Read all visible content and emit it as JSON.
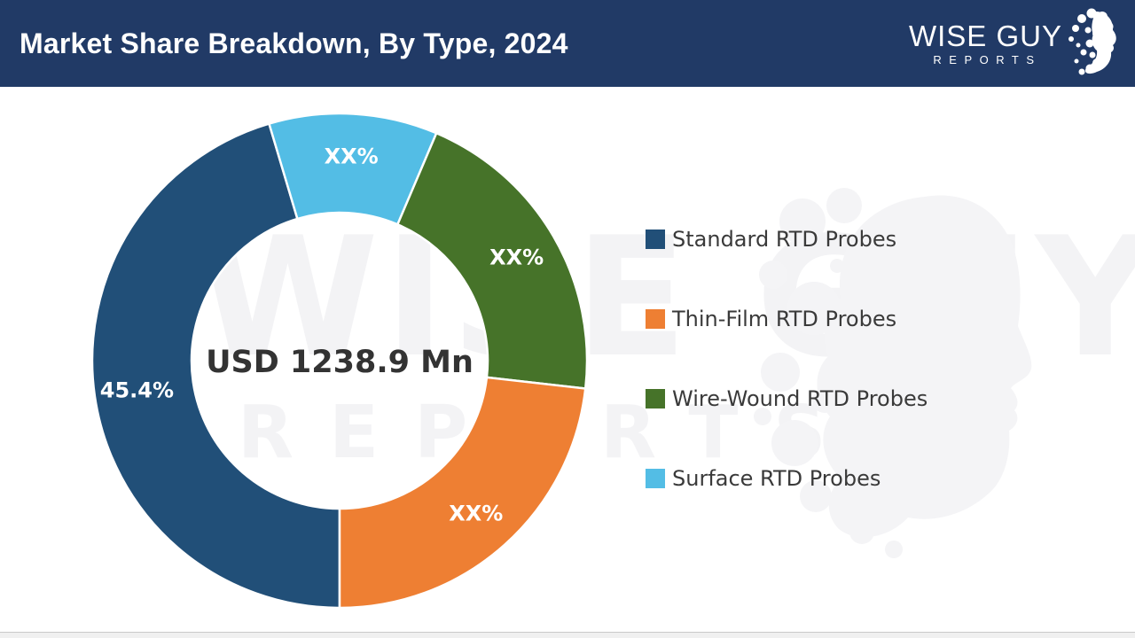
{
  "header": {
    "title": "Market Share Breakdown, By Type, 2024",
    "background_color": "#213A66",
    "logo": {
      "line1": "WISE GUY",
      "line2": "REPORTS",
      "face_icon": "dotted-head-profile"
    }
  },
  "watermark": {
    "line1": "WISE GUY",
    "line2": "REPORTS",
    "color": "#f3f3f5"
  },
  "chart_data": {
    "type": "pie",
    "variant": "donut",
    "title": "Market Share Breakdown, By Type, 2024",
    "center_label": "USD 1238.9 Mn",
    "categories": [
      "Standard RTD Probes",
      "Thin-Film RTD Probes",
      "Wire-Wound RTD Probes",
      "Surface RTD Probes"
    ],
    "values": [
      45.4,
      23.2,
      20.4,
      11.0
    ],
    "values_note": "Only 45.4% is printed on the chart; other slice values are masked as XX% and estimated from arc angles",
    "slice_display_labels": [
      "45.4%",
      "XX%",
      "XX%",
      "XX%"
    ],
    "colors": [
      "#214F78",
      "#EE7F33",
      "#467329",
      "#53BDE5"
    ],
    "segments": [
      {
        "label": "Standard RTD Probes",
        "value_pct": 45.4,
        "display_label": "45.4%",
        "color": "#214F78"
      },
      {
        "label": "Thin-Film RTD Probes",
        "value_pct": 23.2,
        "display_label": "XX%",
        "color": "#EE7F33"
      },
      {
        "label": "Wire-Wound RTD Probes",
        "value_pct": 20.4,
        "display_label": "XX%",
        "color": "#467329"
      },
      {
        "label": "Surface RTD Probes",
        "value_pct": 11.0,
        "display_label": "XX%",
        "color": "#53BDE5"
      }
    ],
    "layout": {
      "start_angle_deg": 180,
      "direction": "clockwise",
      "plot_order": [
        0,
        3,
        2,
        1
      ],
      "inner_radius_ratio": 0.6,
      "legend_position": "right",
      "slice_label_color": "#ffffff",
      "separator_color": "#ffffff"
    }
  }
}
